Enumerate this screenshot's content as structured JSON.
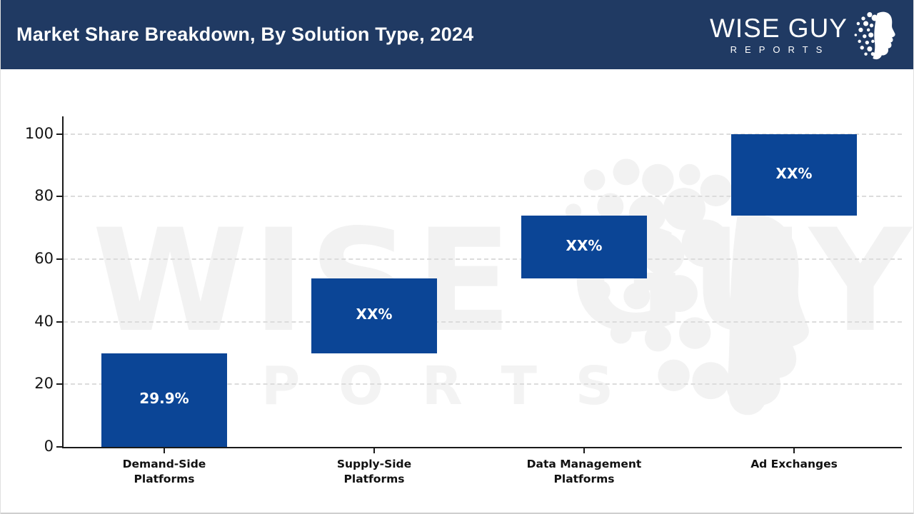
{
  "header": {
    "title": "Market Share Breakdown, By Solution Type, 2024",
    "bg_color": "#203a63",
    "logo": {
      "name": "WISE GUY",
      "subtitle": "REPORTS"
    }
  },
  "watermark": {
    "brand": "WISE GUY",
    "brand_sub": "R E P O R T S"
  },
  "chart_data": {
    "type": "bar",
    "subtype": "waterfall",
    "title": "Market Share Breakdown, By Solution Type, 2024",
    "categories": [
      "Demand-Side Platforms",
      "Supply-Side Platforms",
      "Data Management Platforms",
      "Ad Exchanges"
    ],
    "category_lines": [
      [
        "Demand-Side",
        "Platforms"
      ],
      [
        "Supply-Side",
        "Platforms"
      ],
      [
        "Data Management",
        "Platforms"
      ],
      [
        "Ad Exchanges"
      ]
    ],
    "segments": [
      {
        "category": "Demand-Side Platforms",
        "start": 0,
        "end": 29.9,
        "label": "29.9%"
      },
      {
        "category": "Supply-Side Platforms",
        "start": 29.9,
        "end": 53.8,
        "label": "XX%"
      },
      {
        "category": "Data Management Platforms",
        "start": 53.9,
        "end": 73.9,
        "label": "XX%"
      },
      {
        "category": "Ad Exchanges",
        "start": 73.9,
        "end": 100,
        "label": "XX%"
      }
    ],
    "y_ticks": [
      0,
      20,
      40,
      60,
      80,
      100
    ],
    "ylim": [
      0,
      105.5
    ],
    "xlabel": "",
    "ylabel": "",
    "grid": "horizontal-dashed",
    "legend": null,
    "colors": {
      "bar": "#0b4596",
      "bar_label": "#ffffff",
      "grid": "#dcdcdc",
      "axis": "#1a1a1a",
      "header_bg": "#203a63",
      "watermark": "#f2f2f2"
    }
  }
}
